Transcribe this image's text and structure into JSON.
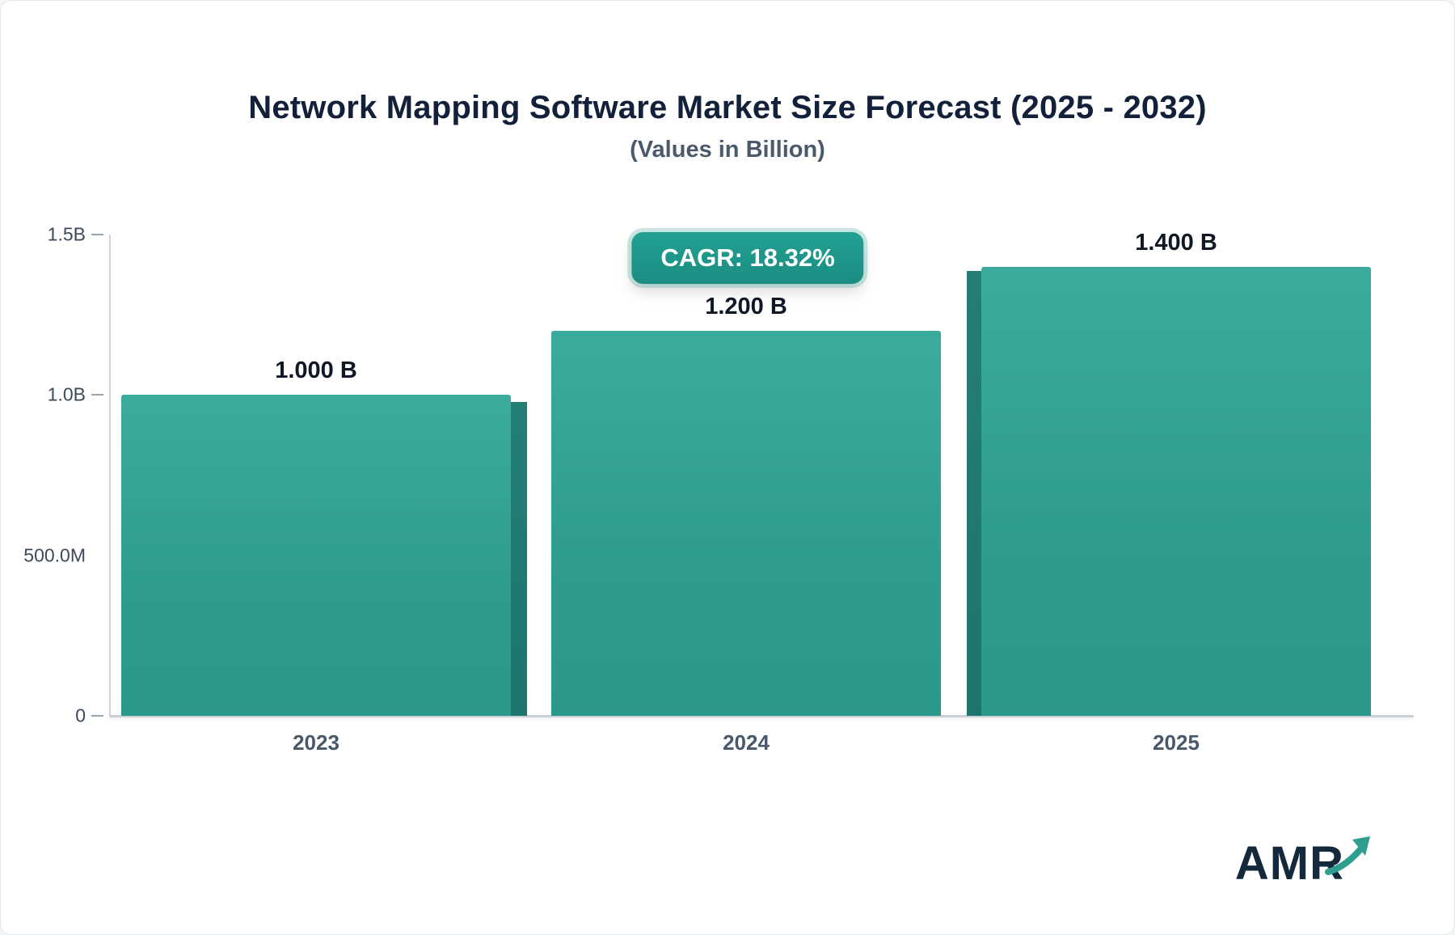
{
  "header": {
    "title": "Network Mapping Software Market Size Forecast (2025 - 2032)",
    "subtitle": "(Values in Billion)"
  },
  "badge": {
    "label": "CAGR: 18.32%"
  },
  "logo": {
    "text": "AMR",
    "arrow_icon": "trend-up-arrow-icon"
  },
  "colors": {
    "bar_gradient_top": "#3bab9c",
    "bar_gradient_bottom": "#2b998a",
    "bar_side_face": "#1d756c",
    "badge_background": "#1f998e",
    "badge_text": "#ffffff",
    "title_text": "#13203a",
    "subtitle_text": "#4b5a6b",
    "axis_text": "#3c4a59",
    "logo_text": "#15293d",
    "logo_arrow": "#2f9e8e"
  },
  "chart_data": {
    "type": "bar",
    "title": "Network Mapping Software Market Size Forecast (2025 - 2032)",
    "subtitle": "(Values in Billion)",
    "cagr": "18.32%",
    "unit": "Billion",
    "categories": [
      "2023",
      "2024",
      "2025"
    ],
    "values": [
      1.0,
      1.2,
      1.4
    ],
    "value_labels": [
      "1.000 B",
      "1.200 B",
      "1.400 B"
    ],
    "xlabel": "",
    "ylabel": "",
    "ylim": [
      0,
      1.5
    ],
    "grid": false,
    "legend_position": "none",
    "yticks": [
      {
        "value": 1.5,
        "label": "1.5B",
        "dash": true
      },
      {
        "value": 1.0,
        "label": "1.0B",
        "dash": true
      },
      {
        "value": 0.5,
        "label": "500.0M",
        "dash": false
      },
      {
        "value": 0.0,
        "label": "0",
        "dash": true
      }
    ]
  }
}
